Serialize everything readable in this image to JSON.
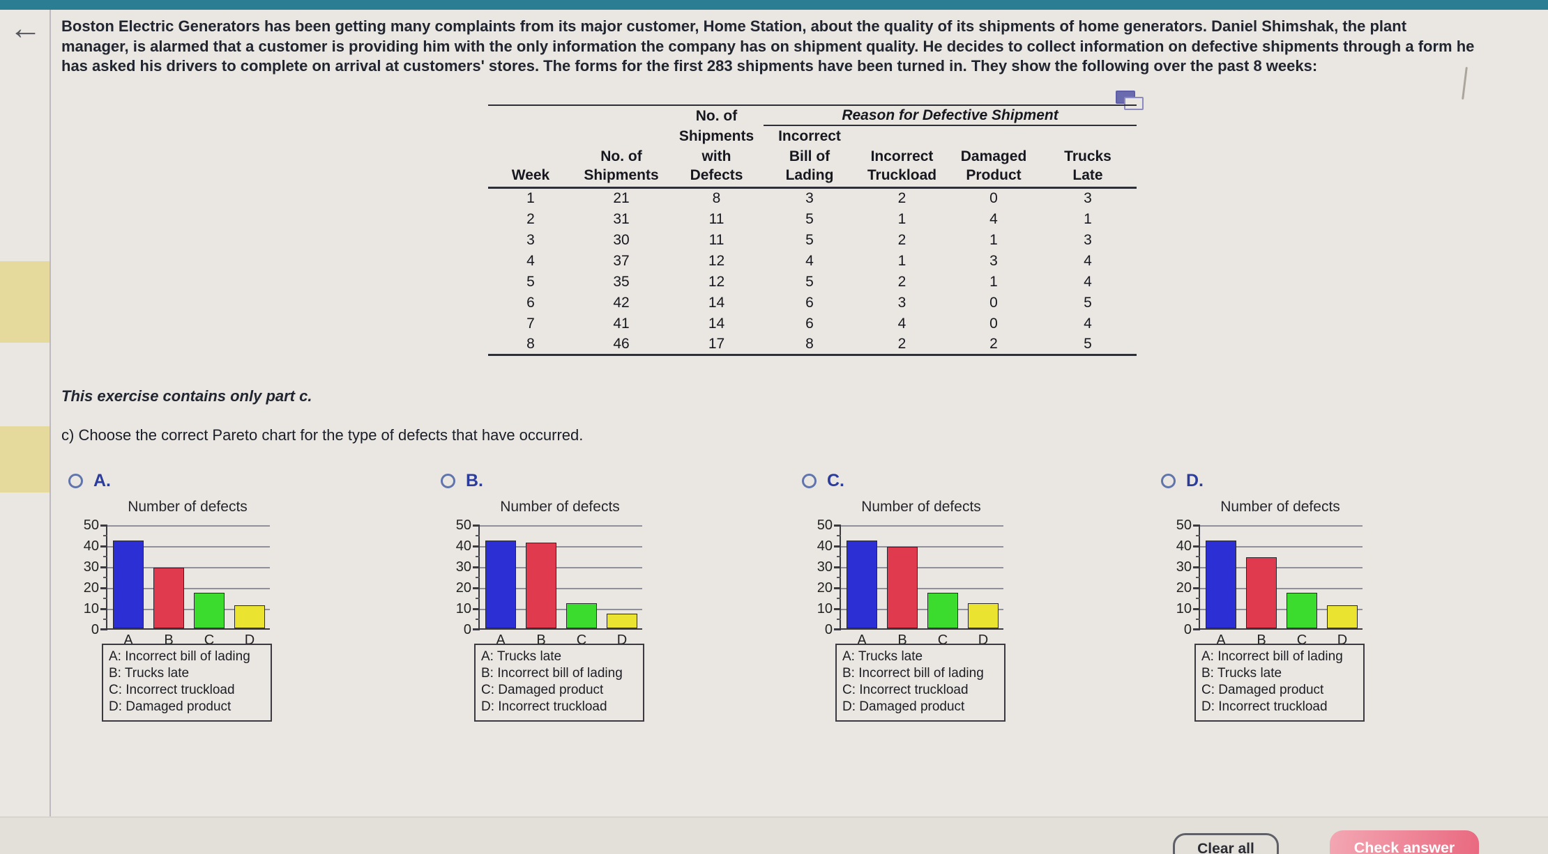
{
  "nav": {
    "back_arrow": "←"
  },
  "problem": {
    "paragraph": "Boston Electric Generators has been getting many complaints from its major customer, Home Station, about the quality of its shipments of home generators. Daniel Shimshak, the plant manager, is alarmed that a customer is providing him with the only information the company has on shipment quality. He decides to collect information on defective shipments through a form he has asked his drivers to complete on arrival at customers' stores. The forms for the first 283 shipments have been turned in. They show the following over the past 8 weeks:",
    "exercise_note": "This exercise contains only part c.",
    "question": "c) Choose the correct Pareto chart for the type of defects that have occurred."
  },
  "table_headers": {
    "r1": {
      "c3": "No. of",
      "group": "Reason for Defective Shipment"
    },
    "r2": {
      "c3": "Shipments",
      "c4": "Incorrect"
    },
    "r3": {
      "c2": "No. of",
      "c3": "with",
      "c4": "Bill of",
      "c5": "Incorrect",
      "c6": "Damaged",
      "c7": "Trucks"
    },
    "r4": {
      "c1": "Week",
      "c2": "Shipments",
      "c3": "Defects",
      "c4": "Lading",
      "c5": "Truckload",
      "c6": "Product",
      "c7": "Late"
    }
  },
  "options": [
    {
      "label": "A."
    },
    {
      "label": "B."
    },
    {
      "label": "C."
    },
    {
      "label": "D."
    }
  ],
  "y_ticks": [
    "50",
    "40",
    "30",
    "20",
    "10",
    "0"
  ],
  "footer": {
    "clear_label": "Clear all",
    "check_label": "Check answer"
  },
  "colors": {
    "topbar": "#2a7d92",
    "bar_blue": "#2b2fd4",
    "bar_red": "#e03a4e",
    "bar_green": "#3bdc2d",
    "bar_yellow": "#eae431",
    "check_button_pink": "#e9687f"
  },
  "chart_data": [
    {
      "type": "table",
      "group_header": "Reason for Defective Shipment",
      "columns": [
        "Week",
        "No. of Shipments",
        "No. of Shipments with Defects",
        "Incorrect Bill of Lading",
        "Incorrect Truckload",
        "Damaged Product",
        "Trucks Late"
      ],
      "rows": [
        [
          1,
          21,
          8,
          3,
          2,
          0,
          3
        ],
        [
          2,
          31,
          11,
          5,
          1,
          4,
          1
        ],
        [
          3,
          30,
          11,
          5,
          2,
          1,
          3
        ],
        [
          4,
          37,
          12,
          4,
          1,
          3,
          4
        ],
        [
          5,
          35,
          12,
          5,
          2,
          1,
          4
        ],
        [
          6,
          42,
          14,
          6,
          3,
          0,
          5
        ],
        [
          7,
          41,
          14,
          6,
          4,
          0,
          4
        ],
        [
          8,
          46,
          17,
          8,
          2,
          2,
          5
        ]
      ]
    },
    {
      "type": "bar",
      "option": "A",
      "title": "Number of defects",
      "categories": [
        "A",
        "B",
        "C",
        "D"
      ],
      "values": [
        42,
        29,
        17,
        11
      ],
      "ylim": [
        0,
        50
      ],
      "grid": true,
      "legend": [
        "A: Incorrect bill of lading",
        "B: Trucks late",
        "C: Incorrect truckload",
        "D: Damaged product"
      ],
      "bar_colors": [
        "#2b2fd4",
        "#e03a4e",
        "#3bdc2d",
        "#eae431"
      ]
    },
    {
      "type": "bar",
      "option": "B",
      "title": "Number of defects",
      "categories": [
        "A",
        "B",
        "C",
        "D"
      ],
      "values": [
        42,
        41,
        12,
        7
      ],
      "ylim": [
        0,
        50
      ],
      "grid": true,
      "legend": [
        "A: Trucks late",
        "B: Incorrect bill of lading",
        "C: Damaged product",
        "D: Incorrect truckload"
      ],
      "bar_colors": [
        "#2b2fd4",
        "#e03a4e",
        "#3bdc2d",
        "#eae431"
      ]
    },
    {
      "type": "bar",
      "option": "C",
      "title": "Number of defects",
      "categories": [
        "A",
        "B",
        "C",
        "D"
      ],
      "values": [
        42,
        39,
        17,
        12
      ],
      "ylim": [
        0,
        50
      ],
      "grid": true,
      "legend": [
        "A: Trucks late",
        "B: Incorrect bill of lading",
        "C: Incorrect truckload",
        "D: Damaged product"
      ],
      "bar_colors": [
        "#2b2fd4",
        "#e03a4e",
        "#3bdc2d",
        "#eae431"
      ]
    },
    {
      "type": "bar",
      "option": "D",
      "title": "Number of defects",
      "categories": [
        "A",
        "B",
        "C",
        "D"
      ],
      "values": [
        42,
        34,
        17,
        11
      ],
      "ylim": [
        0,
        50
      ],
      "grid": true,
      "legend": [
        "A: Incorrect bill of lading",
        "B: Trucks late",
        "C: Damaged product",
        "D: Incorrect truckload"
      ],
      "bar_colors": [
        "#2b2fd4",
        "#e03a4e",
        "#3bdc2d",
        "#eae431"
      ]
    }
  ]
}
